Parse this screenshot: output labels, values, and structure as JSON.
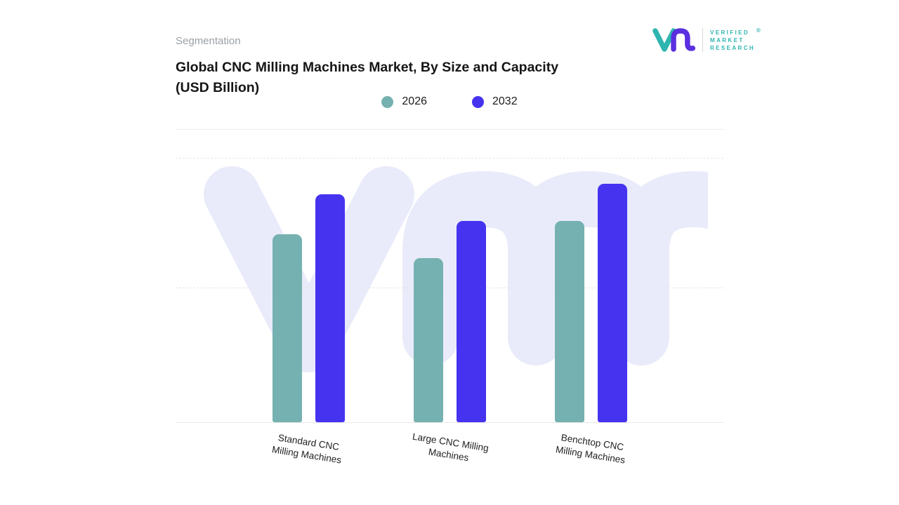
{
  "page": {
    "segmentation_label": "Segmentation"
  },
  "logo": {
    "brand_lines": [
      "VERIFIED",
      "MARKET",
      "RESEARCH"
    ],
    "registered_mark": "®",
    "teal": "#2eb5b0",
    "purple": "#5a2fe0"
  },
  "header": {
    "title_line1": "Global CNC Milling Machines Market, By Size and Capacity",
    "title_line2": "(USD Billion)"
  },
  "legend": [
    {
      "label": "2026",
      "color": "#76b1b1"
    },
    {
      "label": "2032",
      "color": "#4633f0"
    }
  ],
  "chart_data": {
    "type": "bar",
    "title": "Global CNC Milling Machines Market, By Size and Capacity (USD Billion)",
    "categories": [
      "Standard CNC Milling Machines",
      "Large CNC Milling Machines",
      "Benchtop CNC Milling Machines"
    ],
    "categories_wrapped": [
      [
        "Standard CNC",
        "Milling Machines"
      ],
      [
        "Large CNC Milling",
        "Machines"
      ],
      [
        "Benchtop CNC",
        "Milling Machines"
      ]
    ],
    "series": [
      {
        "name": "2026",
        "color": "#76b1b1",
        "values": [
          7.1,
          6.2,
          7.6
        ]
      },
      {
        "name": "2032",
        "color": "#4633f0",
        "values": [
          8.6,
          7.6,
          9.0
        ]
      }
    ],
    "xlabel": "",
    "ylabel": "",
    "ylim": [
      0,
      10
    ],
    "value_labels_shown": false,
    "gridlines": "horizontal-dashed",
    "legend_position": "top-center",
    "watermark": "vmr-logo-light"
  }
}
